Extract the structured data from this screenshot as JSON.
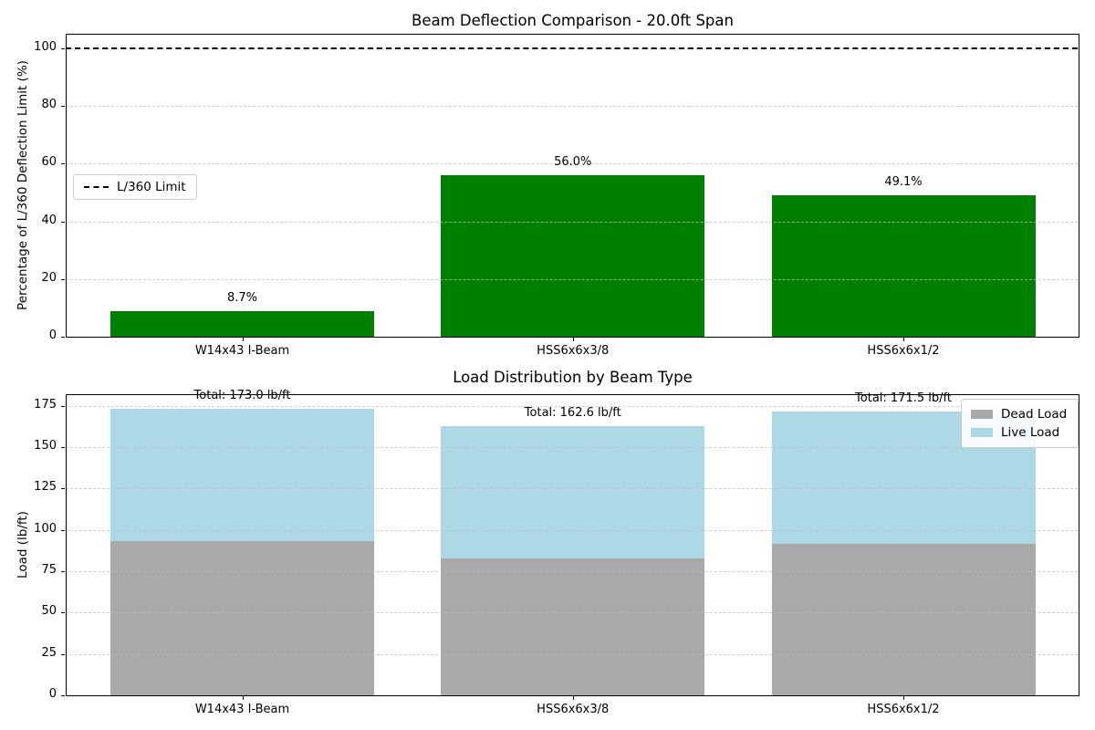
{
  "figure": {
    "background": "#ffffff"
  },
  "chart_data": [
    {
      "type": "bar",
      "title": "Beam Deflection Comparison - 20.0ft Span",
      "xlabel": "",
      "ylabel": "Percentage of L/360 Deflection Limit (%)",
      "categories": [
        "W14x43 I-Beam",
        "HSS6x6x3/8",
        "HSS6x6x1/2"
      ],
      "values": [
        8.7,
        56.0,
        49.1
      ],
      "value_labels": [
        "8.7%",
        "56.0%",
        "49.1%"
      ],
      "bar_color": "#008000",
      "yticks": [
        0,
        20,
        40,
        60,
        80,
        100
      ],
      "ylim": [
        0,
        105
      ],
      "grid": "horizontal-dashed",
      "reference_line": {
        "value": 100,
        "label": "L/360 Limit",
        "color": "#000000",
        "style": "dashed"
      },
      "legend": {
        "position": "center-left",
        "entries": [
          {
            "label": "L/360 Limit",
            "swatch": "dashed-black-line"
          }
        ]
      }
    },
    {
      "type": "stacked-bar",
      "title": "Load Distribution by Beam Type",
      "xlabel": "",
      "ylabel": "Load (lb/ft)",
      "categories": [
        "W14x43 I-Beam",
        "HSS6x6x3/8",
        "HSS6x6x1/2"
      ],
      "series": [
        {
          "name": "Dead Load",
          "color": "#a9a9a9",
          "values": [
            93.0,
            82.6,
            91.5
          ]
        },
        {
          "name": "Live Load",
          "color": "#add8e6",
          "values": [
            80.0,
            80.0,
            80.0
          ]
        }
      ],
      "totals": [
        173.0,
        162.6,
        171.5
      ],
      "total_labels": [
        "Total: 173.0 lb/ft",
        "Total: 162.6 lb/ft",
        "Total: 171.5 lb/ft"
      ],
      "yticks": [
        0,
        25,
        50,
        75,
        100,
        125,
        150,
        175
      ],
      "ylim": [
        0,
        182
      ],
      "grid": "horizontal-dashed",
      "legend": {
        "position": "top-right",
        "entries": [
          {
            "label": "Dead Load",
            "swatch": "#a9a9a9"
          },
          {
            "label": "Live Load",
            "swatch": "#add8e6"
          }
        ]
      }
    }
  ]
}
